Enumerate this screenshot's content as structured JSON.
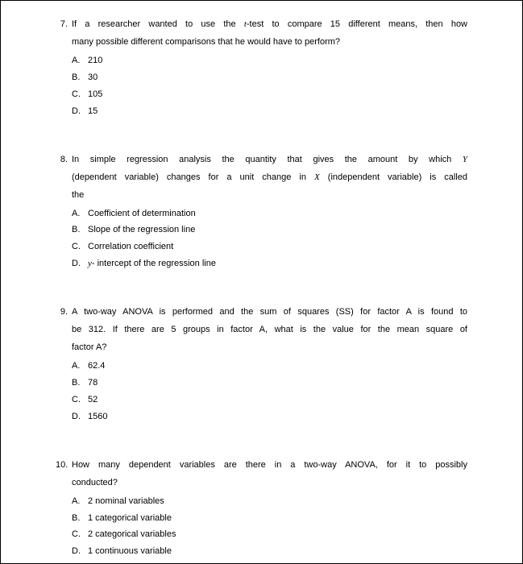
{
  "questions": [
    {
      "number": "7.",
      "lines": [
        "If a researcher wanted to use the <span class=\"italic\">t</span>-test to compare 15 different means, then how",
        "many possible different comparisons that he would have to perform?"
      ],
      "line_justify": [
        true,
        false
      ],
      "options": [
        {
          "letter": "A.",
          "text": "210"
        },
        {
          "letter": "B.",
          "text": "30"
        },
        {
          "letter": "C.",
          "text": "105"
        },
        {
          "letter": "D.",
          "text": "15"
        }
      ]
    },
    {
      "number": "8.",
      "lines": [
        "In simple regression analysis the quantity that gives the amount by which <span class=\"italic\">Y</span>",
        "(dependent variable) changes for a unit change in <span class=\"italic\">X</span> (independent variable) is called",
        "the"
      ],
      "line_justify": [
        true,
        true,
        false
      ],
      "options": [
        {
          "letter": "A.",
          "text": "Coefficient of determination"
        },
        {
          "letter": "B.",
          "text": "Slope of the regression line"
        },
        {
          "letter": "C.",
          "text": "Correlation coefficient"
        },
        {
          "letter": "D.",
          "text": "<span class=\"italic\">y</span>- intercept of the regression line"
        }
      ]
    },
    {
      "number": "9.",
      "lines": [
        "A two-way ANOVA is performed and the sum of squares (SS) for factor A is found to",
        "be 312. If there are 5 groups in factor A, what is the value for the mean square of",
        "factor A?"
      ],
      "line_justify": [
        true,
        true,
        false
      ],
      "options": [
        {
          "letter": "A.",
          "text": "62.4"
        },
        {
          "letter": "B.",
          "text": "78"
        },
        {
          "letter": "C.",
          "text": "52"
        },
        {
          "letter": "D.",
          "text": "1560"
        }
      ]
    },
    {
      "number": "10.",
      "lines": [
        "How many dependent variables are there in a two-way ANOVA, for it to possibly",
        "conducted?"
      ],
      "line_justify": [
        true,
        false
      ],
      "options": [
        {
          "letter": "A.",
          "text": "2 nominal variables"
        },
        {
          "letter": "B.",
          "text": "1 categorical variable"
        },
        {
          "letter": "C.",
          "text": "2 categorical variables"
        },
        {
          "letter": "D.",
          "text": "1 continuous variable"
        }
      ]
    }
  ]
}
